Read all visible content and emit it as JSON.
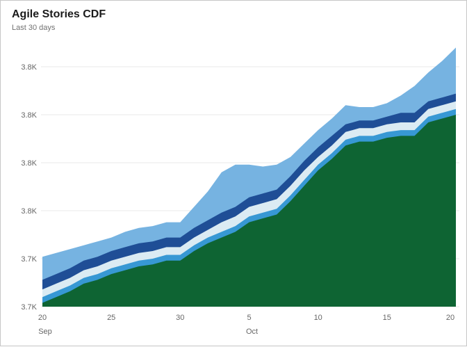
{
  "card": {
    "title": "Agile Stories CDF",
    "subtitle": "Last 30 days"
  },
  "colors": {
    "band_dark_green": "#0e6433",
    "band_medium_blue": "#3798d4",
    "band_pale_blue": "#dbebf3",
    "band_navy": "#1f4e96",
    "band_light_blue": "#76b3e1",
    "gridline": "#e8e8e8",
    "axis_text": "#666666"
  },
  "chart_data": {
    "type": "area",
    "stacked": true,
    "title": "Agile Stories CDF",
    "subtitle": "Last 30 days",
    "legend": "none",
    "grid": "horizontal",
    "num_points": 31,
    "baseline_value": 3700,
    "x_axis": {
      "tick_labels": [
        "20",
        "25",
        "30",
        "5",
        "10",
        "15",
        "20"
      ],
      "tick_indices": [
        0,
        5,
        10,
        15,
        20,
        25,
        30
      ],
      "month_labels": [
        {
          "index": 0,
          "label": "Sep"
        },
        {
          "index": 15,
          "label": "Oct"
        }
      ],
      "range_description": "daily points from Sep 20 to Oct 20"
    },
    "y_axis": {
      "ticks": [
        {
          "value": 3700,
          "label": "3.7K"
        },
        {
          "value": 3725,
          "label": "3.7K"
        },
        {
          "value": 3750,
          "label": "3.8K"
        },
        {
          "value": 3775,
          "label": "3.8K"
        },
        {
          "value": 3800,
          "label": "3.8K"
        },
        {
          "value": 3825,
          "label": "3.8K"
        }
      ],
      "ylim": [
        3700,
        3840
      ]
    },
    "series": [
      {
        "name": "band-1-dark-green",
        "color": "#0e6433",
        "cumulative": [
          3702,
          3705,
          3708,
          3712,
          3714,
          3717,
          3719,
          3721,
          3722,
          3724,
          3724,
          3729,
          3733,
          3736,
          3739,
          3744,
          3746,
          3748,
          3755,
          3763,
          3771,
          3777,
          3784,
          3786,
          3786,
          3788,
          3789,
          3789,
          3796,
          3798,
          3800
        ]
      },
      {
        "name": "band-2-medium-blue",
        "color": "#3798d4",
        "cumulative": [
          3705,
          3708,
          3711,
          3715,
          3717,
          3720,
          3722,
          3724,
          3725,
          3727,
          3727,
          3732,
          3736,
          3739,
          3742,
          3747,
          3749,
          3751,
          3758,
          3766,
          3774,
          3780,
          3787,
          3789,
          3789,
          3791,
          3792,
          3792,
          3799,
          3801,
          3803
        ]
      },
      {
        "name": "band-3-pale-blue",
        "color": "#dbebf3",
        "cumulative": [
          3709,
          3712,
          3715,
          3719,
          3721,
          3724,
          3726,
          3728,
          3729,
          3731,
          3731,
          3736,
          3740,
          3744,
          3747,
          3752,
          3754,
          3756,
          3763,
          3771,
          3778,
          3784,
          3791,
          3793,
          3793,
          3795,
          3796,
          3796,
          3803,
          3805,
          3807
        ]
      },
      {
        "name": "band-4-navy",
        "color": "#1f4e96",
        "cumulative": [
          3714,
          3717,
          3720,
          3724,
          3726,
          3729,
          3731,
          3733,
          3734,
          3736,
          3736,
          3741,
          3745,
          3749,
          3752,
          3757,
          3759,
          3761,
          3768,
          3776,
          3783,
          3789,
          3795,
          3797,
          3797,
          3799,
          3801,
          3801,
          3807,
          3809,
          3811
        ]
      },
      {
        "name": "band-5-light-blue",
        "color": "#76b3e1",
        "cumulative": [
          3726,
          3728,
          3730,
          3732,
          3734,
          3736,
          3739,
          3741,
          3742,
          3744,
          3744,
          3752,
          3760,
          3770,
          3774,
          3774,
          3773,
          3774,
          3778,
          3785,
          3792,
          3798,
          3805,
          3804,
          3804,
          3806,
          3810,
          3815,
          3822,
          3828,
          3835
        ]
      }
    ]
  }
}
